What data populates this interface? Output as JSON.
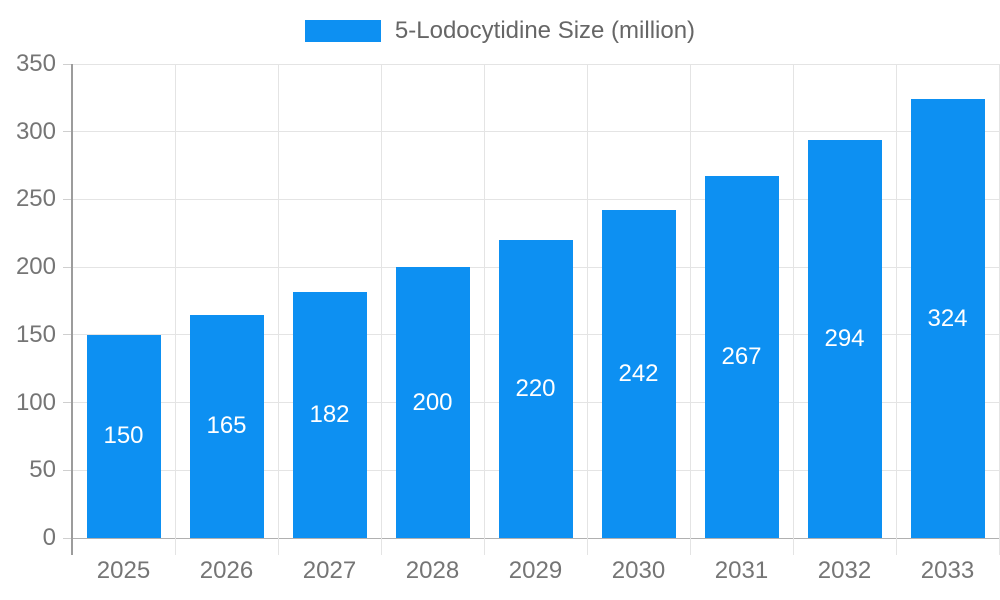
{
  "chart_data": {
    "type": "bar",
    "title": "5-Lodocytidine Size (million)",
    "legend": {
      "label": "5-Lodocytidine Size (million)",
      "position": "top"
    },
    "categories": [
      "2025",
      "2026",
      "2027",
      "2028",
      "2029",
      "2030",
      "2031",
      "2032",
      "2033"
    ],
    "series": [
      {
        "name": "5-Lodocytidine Size (million)",
        "values": [
          150,
          165,
          182,
          200,
          220,
          242,
          267,
          294,
          324
        ]
      }
    ],
    "xlabel": "",
    "ylabel": "",
    "ylim": [
      0,
      350
    ],
    "y_ticks": [
      0,
      50,
      100,
      150,
      200,
      250,
      300,
      350
    ],
    "grid": true,
    "value_labels": "inside-center",
    "colors": {
      "bar": "#0d90f2",
      "value_label": "#ffffff",
      "axis_text": "#757575",
      "legend_text": "#666666",
      "gridline": "#e4e4e4",
      "baseline": "#b0b0b0",
      "axis_line": "#9c9c9c",
      "tick": "#cfcfcf"
    }
  }
}
